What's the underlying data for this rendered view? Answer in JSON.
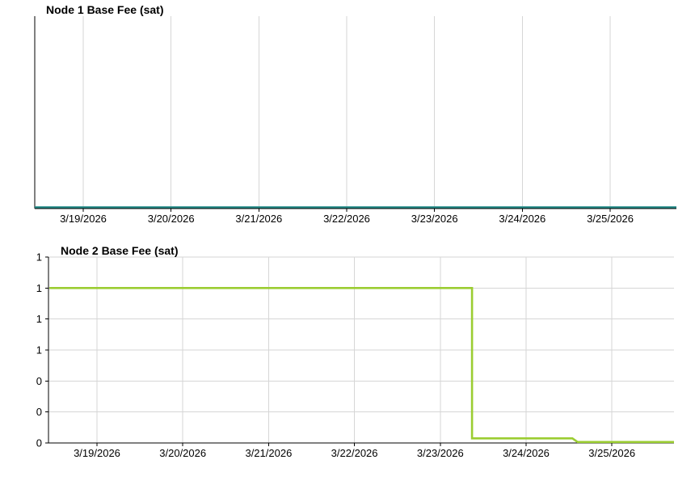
{
  "style": {
    "background": "#ffffff",
    "grid_color": "#d6d6d6",
    "axis_color": "#000000",
    "text_color": "#000000"
  },
  "chart_data": [
    {
      "type": "line",
      "title": "Node 1 Base Fee (sat)",
      "xlabel": "",
      "ylabel": "",
      "unit": "sat",
      "line_color": "#1f8783",
      "grid": "vertical-only",
      "x_tick_labels": [
        "3/19/2026",
        "3/20/2026",
        "3/21/2026",
        "3/22/2026",
        "3/23/2026",
        "3/24/2026",
        "3/25/2026"
      ],
      "y_tick_labels": [],
      "y_tick_values": [],
      "ylim": [
        0,
        1
      ],
      "x_range": [
        "3/18/2026 ~10:30",
        "3/25/2026 ~18:00"
      ],
      "series": [
        {
          "name": "Node 1 Base Fee (sat)",
          "description": "constant 0 sat across the entire visible range",
          "points": [
            {
              "t": -0.555,
              "x": "3/18/2026 ~10:30",
              "y": 0
            },
            {
              "t": 6.755,
              "x": "3/25/2026 ~18:00",
              "y": 0
            }
          ]
        }
      ]
    },
    {
      "type": "line",
      "title": "Node 2 Base Fee (sat)",
      "xlabel": "",
      "ylabel": "",
      "unit": "sat",
      "line_color": "#9bcd32",
      "grid": "both",
      "x_tick_labels": [
        "3/19/2026",
        "3/20/2026",
        "3/21/2026",
        "3/22/2026",
        "3/23/2026",
        "3/24/2026",
        "3/25/2026"
      ],
      "y_tick_labels": [
        "1",
        "1",
        "1",
        "1",
        "0",
        "0",
        "0"
      ],
      "y_tick_values": [
        1.2,
        1.0,
        0.8,
        0.6,
        0.4,
        0.2,
        0
      ],
      "ylim": [
        0,
        1.2
      ],
      "x_range": [
        "3/18/2026 ~10:30",
        "3/25/2026 ~17:30"
      ],
      "series": [
        {
          "name": "Node 2 Base Fee (sat)",
          "description": "1 sat until ~3/23 morning, step down to ~0.03 sat, then ~0 sat from ~3/24 afternoon onward",
          "points": [
            {
              "t": -0.555,
              "x": "3/18/2026 ~10:30",
              "y": 1
            },
            {
              "t": 4.37,
              "x": "3/23/2026 ~09:00",
              "y": 1
            },
            {
              "t": 4.37,
              "x": "3/23/2026 ~09:00",
              "y": 0.03
            },
            {
              "t": 5.54,
              "x": "3/24/2026 ~13:00",
              "y": 0.03
            },
            {
              "t": 5.6,
              "x": "3/24/2026 ~14:30",
              "y": 0.005
            },
            {
              "t": 6.73,
              "x": "3/25/2026 ~17:30",
              "y": 0.005
            }
          ]
        }
      ]
    }
  ]
}
